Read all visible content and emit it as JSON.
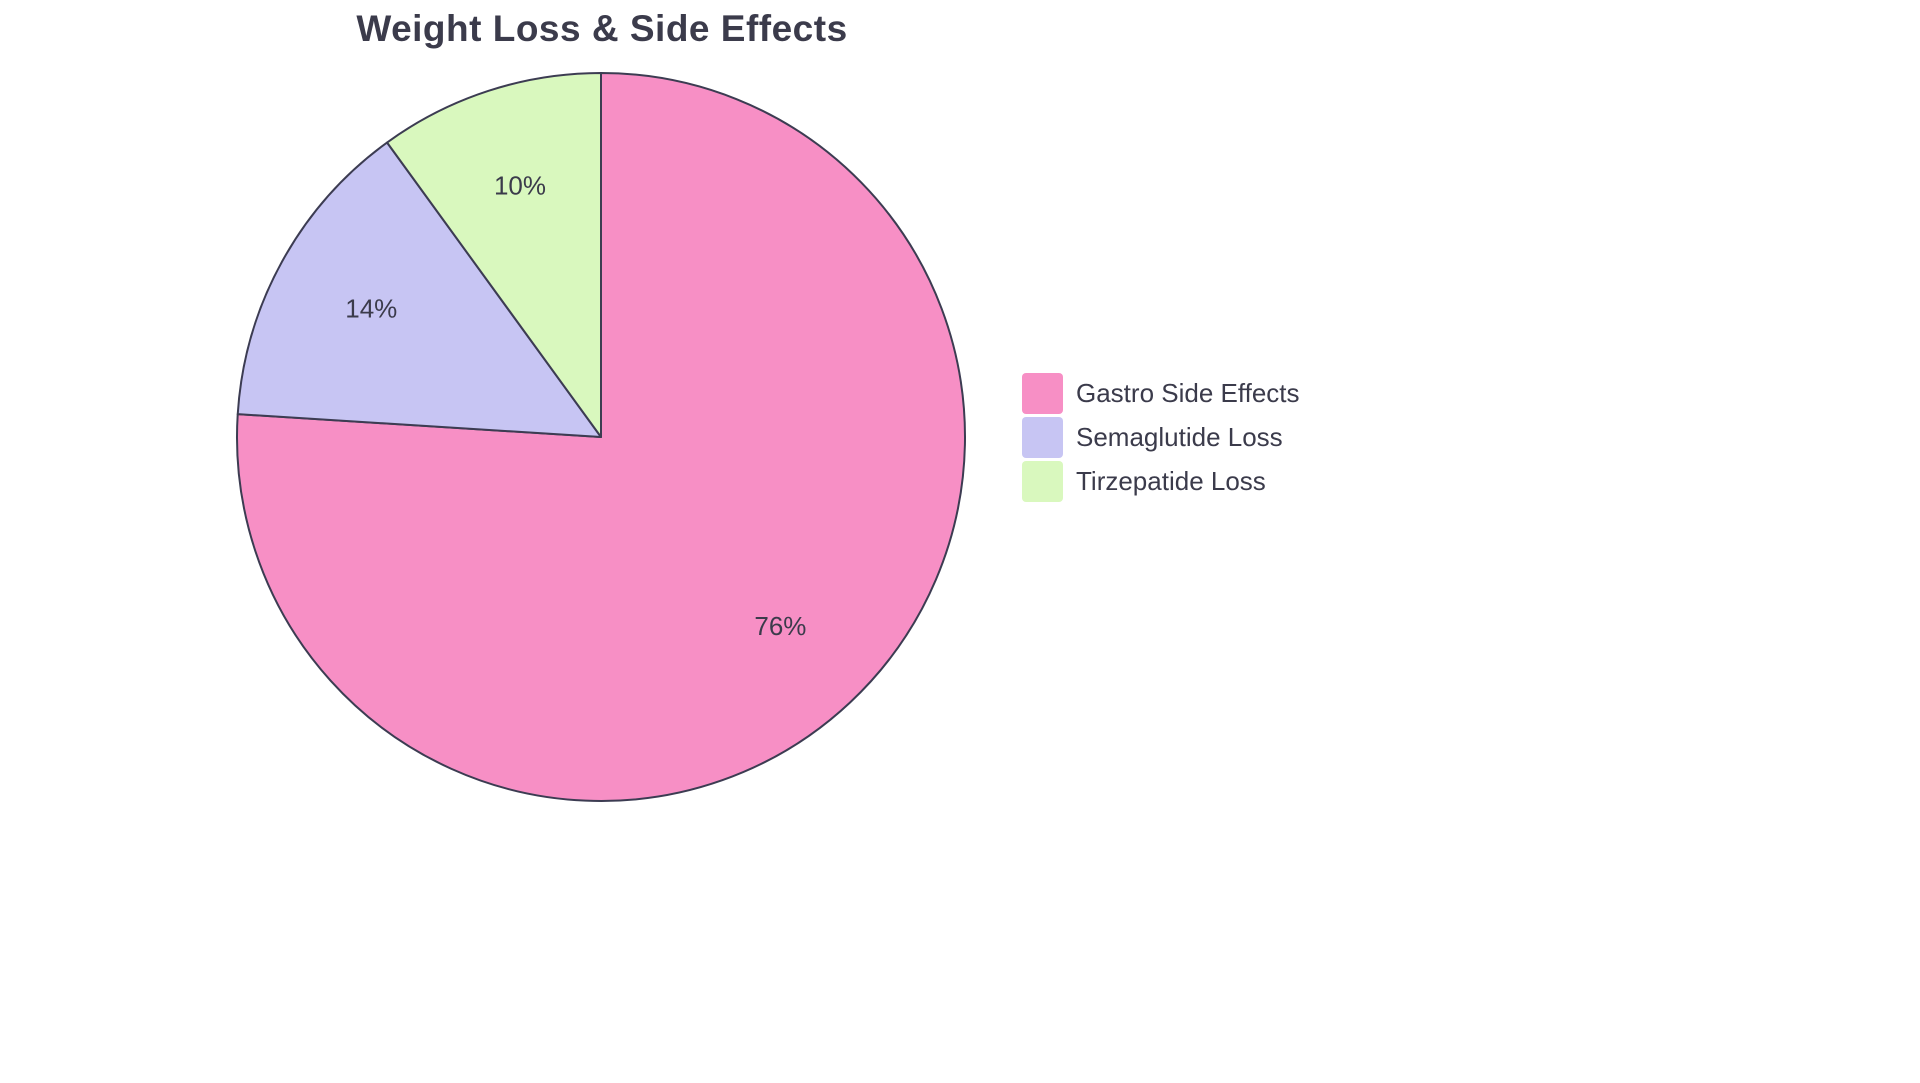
{
  "chart_data": {
    "type": "pie",
    "title": "Weight Loss & Side Effects",
    "labels": [
      "Gastro Side Effects",
      "Semaglutide Loss",
      "Tirzepatide Loss"
    ],
    "values": [
      76,
      14,
      10
    ],
    "value_labels": [
      "76%",
      "14%",
      "10%"
    ],
    "colors": [
      "#F78FC5",
      "#C7C5F3",
      "#D9F8BE"
    ],
    "stroke_color": "#3C3C52",
    "text_color": "#3B3B4B",
    "start_angle_deg": 0,
    "direction": "clockwise",
    "legend_position": "right",
    "grid": false
  }
}
